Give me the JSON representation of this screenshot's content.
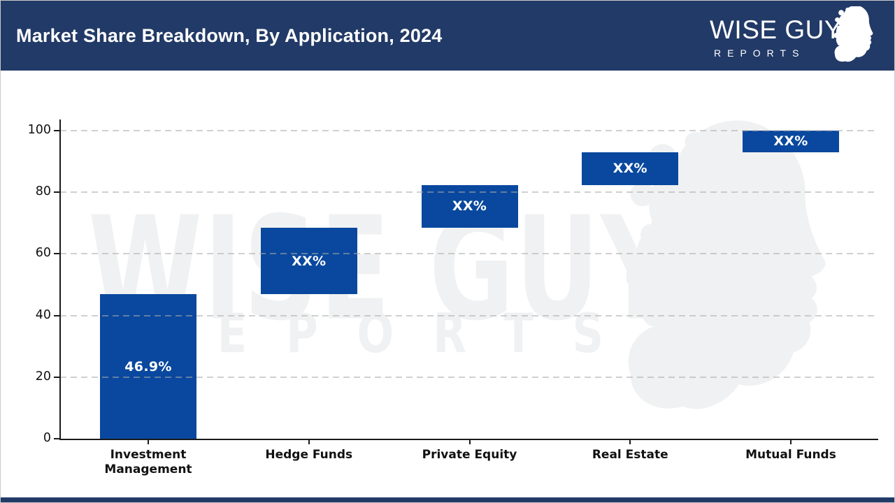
{
  "header": {
    "title": "Market Share Breakdown, By Application, 2024",
    "logo": {
      "primary": "WISE GUY",
      "secondary": "R E P O R T S"
    }
  },
  "watermark": {
    "primary": "WISE GUY",
    "secondary": "REPORTS"
  },
  "colors": {
    "header_bg": "#223a67",
    "footer_bg": "#223a67",
    "bar_fill": "#09489e",
    "bar_label": "#ffffff",
    "axis": "#1a1a1a",
    "tick_label": "#111111",
    "grid": "#aaaaaa",
    "watermark": "#f0f1f2"
  },
  "chart_data": {
    "type": "waterfall",
    "title": "Market Share Breakdown, By Application, 2024",
    "categories": [
      "Investment Management",
      "Hedge Funds",
      "Private Equity",
      "Real Estate",
      "Mutual Funds"
    ],
    "series": [
      {
        "name": "Investment Management",
        "start": 0,
        "end": 46.9,
        "label": "46.9%"
      },
      {
        "name": "Hedge Funds",
        "start": 46.9,
        "end": 68.4,
        "label": "XX%"
      },
      {
        "name": "Private Equity",
        "start": 68.4,
        "end": 82.4,
        "label": "XX%"
      },
      {
        "name": "Real Estate",
        "start": 82.4,
        "end": 93.0,
        "label": "XX%"
      },
      {
        "name": "Mutual Funds",
        "start": 93.0,
        "end": 100.0,
        "label": "XX%"
      }
    ],
    "xlabel": "",
    "ylabel": "",
    "ylim": [
      0,
      100
    ],
    "yticks": [
      0,
      20,
      40,
      60,
      80,
      100
    ],
    "grid": {
      "axis": "y",
      "style": "dashed"
    },
    "legend": null
  }
}
